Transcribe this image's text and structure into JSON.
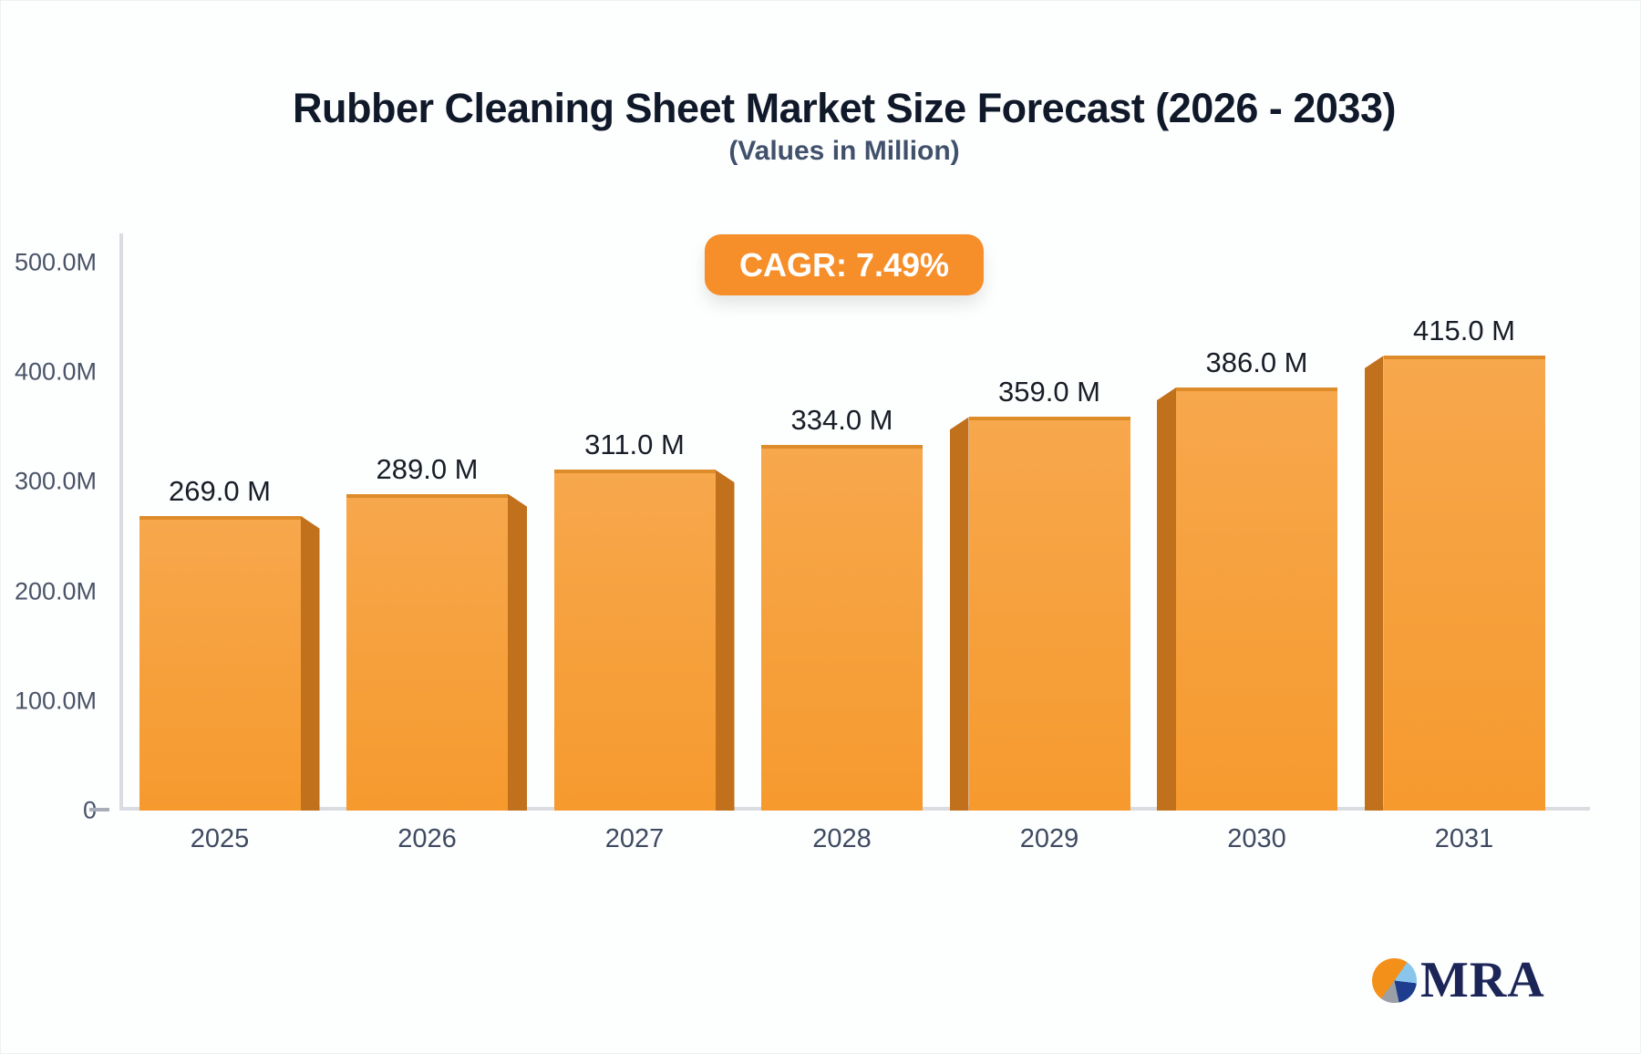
{
  "header": {
    "title": "Rubber Cleaning Sheet Market Size Forecast (2026 - 2033)",
    "subtitle": "(Values in Million)",
    "cagr_badge": "CAGR: 7.49%"
  },
  "chart_data": {
    "type": "bar",
    "title": "Rubber Cleaning Sheet Market Size Forecast (2026 - 2033)",
    "subtitle": "(Values in Million)",
    "annotation": "CAGR: 7.49%",
    "categories": [
      "2025",
      "2026",
      "2027",
      "2028",
      "2029",
      "2030",
      "2031"
    ],
    "values": [
      269.0,
      289.0,
      311.0,
      334.0,
      359.0,
      386.0,
      415.0
    ],
    "value_labels": [
      "269.0 M",
      "289.0 M",
      "311.0 M",
      "334.0 M",
      "359.0 M",
      "386.0 M",
      "415.0 M"
    ],
    "y_ticks": [
      {
        "label": "500.0M",
        "value": 500
      },
      {
        "label": "400.0M",
        "value": 400
      },
      {
        "label": "300.0M",
        "value": 300
      },
      {
        "label": "200.0M",
        "value": 200
      },
      {
        "label": "100.0M",
        "value": 100
      },
      {
        "label": "0",
        "value": 0
      }
    ],
    "ylim": [
      0,
      500
    ],
    "xlabel": "",
    "ylabel": "",
    "grid": false,
    "legend": false,
    "bar_style": "3d-perspective-center"
  },
  "logo": {
    "text": "MRA",
    "icon": "pie-chart-icon"
  },
  "colors": {
    "title_color": "#10192a",
    "subtitle_color": "#41516b",
    "badge_bg": "#f68e2a",
    "face_top": "#f7a74c",
    "face_bottom": "#f69a2e",
    "face_edge": "#de8b29",
    "side_color": "#c1701c",
    "axis_line": "#d9dce1",
    "tick_color": "#4a5468",
    "xlabel_color": "#3e4a61",
    "value_color": "#181d27",
    "logo_orange": "#f39019",
    "logo_lightblue": "#8ac6ec",
    "logo_navy": "#1e3d8f",
    "logo_gray": "#9aa0a6",
    "logo_navy_text": "#1b2557"
  }
}
